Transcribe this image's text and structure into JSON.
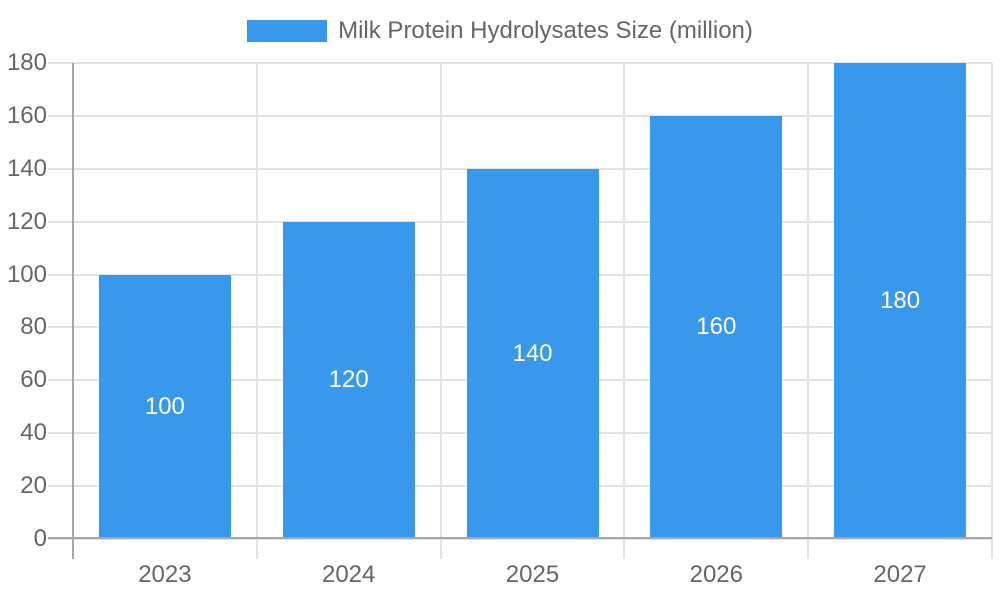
{
  "legend": {
    "label": "Milk Protein Hydrolysates Size (million)"
  },
  "colors": {
    "bar": "#3899ec",
    "grid": "#e3e3e3",
    "axis": "#a6a6a6",
    "text": "#666666",
    "bar_label": "#ffffff",
    "background": "#ffffff"
  },
  "chart_data": {
    "type": "bar",
    "title": "Milk Protein Hydrolysates Size (million)",
    "categories": [
      "2023",
      "2024",
      "2025",
      "2026",
      "2027"
    ],
    "values": [
      100,
      120,
      140,
      160,
      180
    ],
    "bar_labels": [
      "100",
      "120",
      "140",
      "160",
      "180"
    ],
    "xlabel": "",
    "ylabel": "",
    "ylim": [
      0,
      180
    ],
    "ytick_step": 20,
    "yticks": [
      0,
      20,
      40,
      60,
      80,
      100,
      120,
      140,
      160,
      180
    ],
    "grid": true,
    "legend_position": "top-center",
    "bar_color": "#3899ec",
    "bar_label_position": "center"
  }
}
